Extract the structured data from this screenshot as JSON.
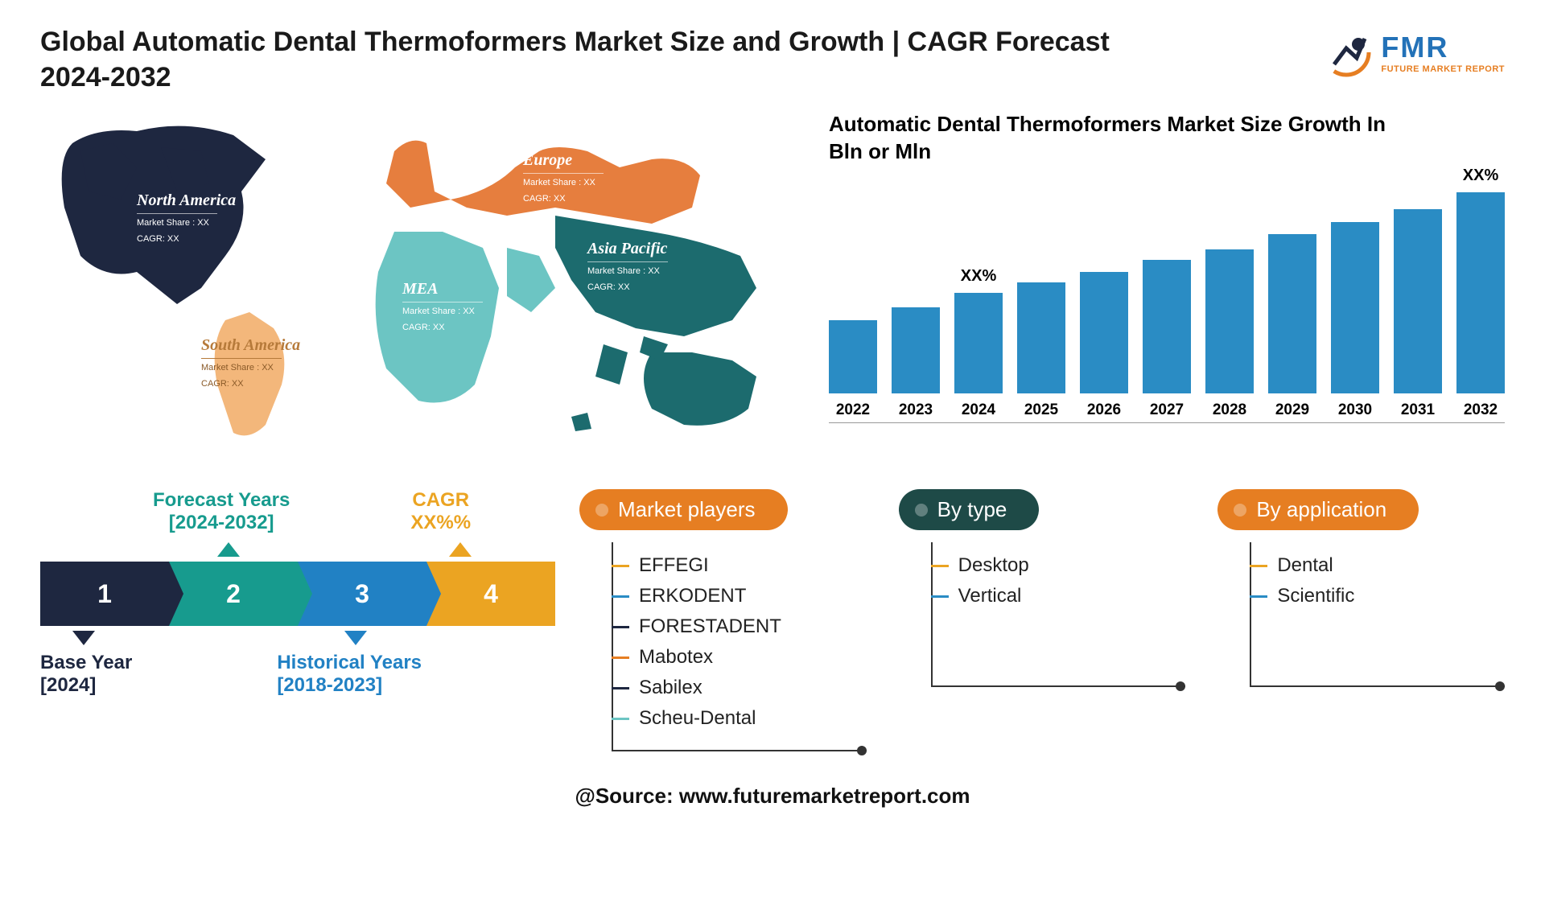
{
  "title": "Global Automatic Dental Thermoformers Market Size and Growth | CAGR Forecast 2024-2032",
  "logo": {
    "main": "FMR",
    "sub": "FUTURE MARKET REPORT"
  },
  "map": {
    "regions": [
      {
        "name": "North America",
        "share": "Market Share : XX",
        "cagr": "CAGR: XX",
        "color": "#1e2740"
      },
      {
        "name": "South America",
        "share": "Market Share : XX",
        "cagr": "CAGR: XX",
        "color": "#f3b77b"
      },
      {
        "name": "Europe",
        "share": "Market Share : XX",
        "cagr": "CAGR: XX",
        "color": "#e67e3e"
      },
      {
        "name": "MEA",
        "share": "Market Share : XX",
        "cagr": "CAGR: XX",
        "color": "#6cc5c3"
      },
      {
        "name": "Asia Pacific",
        "share": "Market Share : XX",
        "cagr": "CAGR: XX",
        "color": "#1c6b6e"
      }
    ]
  },
  "chart": {
    "type": "bar",
    "title": "Automatic Dental Thermoformers Market Size Growth In\nBln or Mln",
    "years": [
      "2022",
      "2023",
      "2024",
      "2025",
      "2026",
      "2027",
      "2028",
      "2029",
      "2030",
      "2031",
      "2032"
    ],
    "values": [
      35,
      41,
      48,
      53,
      58,
      64,
      69,
      76,
      82,
      88,
      96
    ],
    "value_max": 100,
    "bar_color": "#2a8cc4",
    "label_fontsize": 19,
    "top_labels": {
      "2": "XX%",
      "10": "XX%"
    }
  },
  "timeline": {
    "forecast_label": "Forecast Years",
    "forecast_range": "[2024-2032]",
    "cagr_label": "CAGR",
    "cagr_value": "XX%%",
    "base_label": "Base Year",
    "base_value": "[2024]",
    "hist_label": "Historical Years",
    "hist_range": "[2018-2023]",
    "segments": [
      "1",
      "2",
      "3",
      "4"
    ],
    "colors": {
      "seg1": "#1e2740",
      "seg2": "#179b8e",
      "seg3": "#2181c4",
      "seg4": "#eba422"
    }
  },
  "segments": [
    {
      "title": "Market players",
      "header_color": "#e67e22",
      "items": [
        {
          "text": "EFFEGI",
          "color": "#eba422"
        },
        {
          "text": "ERKODENT",
          "color": "#2a8cc4"
        },
        {
          "text": "FORESTADENT",
          "color": "#1e2740"
        },
        {
          "text": "Mabotex",
          "color": "#e67e22"
        },
        {
          "text": "Sabilex",
          "color": "#1e2740"
        },
        {
          "text": "Scheu-Dental",
          "color": "#6cc5c3"
        }
      ]
    },
    {
      "title": "By type",
      "header_color": "#1e4a47",
      "items": [
        {
          "text": "Desktop",
          "color": "#eba422"
        },
        {
          "text": "Vertical",
          "color": "#2a8cc4"
        }
      ]
    },
    {
      "title": "By application",
      "header_color": "#e67e22",
      "items": [
        {
          "text": "Dental",
          "color": "#eba422"
        },
        {
          "text": "Scientific",
          "color": "#2a8cc4"
        }
      ]
    }
  ],
  "source": "@Source: www.futuremarketreport.com"
}
